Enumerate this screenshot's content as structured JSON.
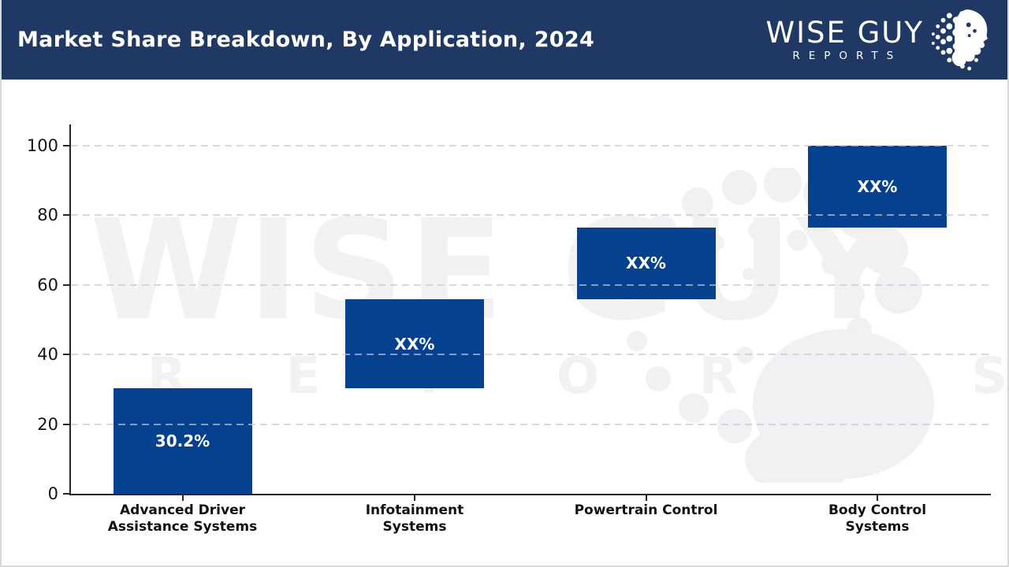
{
  "header": {
    "title": "Market Share Breakdown, By Application, 2024",
    "background_color": "#1f3864",
    "logo": {
      "name": "WISE GUY",
      "sub": "REPORTS"
    }
  },
  "watermark": {
    "brand": "WISE GUY",
    "sub": "R E P O R T S"
  },
  "chart_data": {
    "type": "bar",
    "variant": "waterfall",
    "title": "Market Share Breakdown, By Application, 2024",
    "categories": [
      "Advanced Driver\nAssistance Systems",
      "Infotainment\nSystems",
      "Powertrain Control",
      "Body Control\nSystems"
    ],
    "segments": [
      {
        "category": "Advanced Driver Assistance Systems",
        "start": 0,
        "end": 30.2,
        "label": "30.2%"
      },
      {
        "category": "Infotainment Systems",
        "start": 30.2,
        "end": 55.8,
        "label": "XX%"
      },
      {
        "category": "Powertrain Control",
        "start": 55.8,
        "end": 76.5,
        "label": "XX%"
      },
      {
        "category": "Body Control Systems",
        "start": 76.5,
        "end": 100,
        "label": "XX%"
      }
    ],
    "yticks": [
      0,
      20,
      40,
      60,
      80,
      100
    ],
    "ylim": [
      0,
      106
    ],
    "grid": {
      "axis": "y",
      "style": "dashed",
      "color": "#d9d9d9"
    },
    "bar_color": "#05418f",
    "value_label_color": "#ffffff",
    "axis_color": "#262626",
    "xlabel": "",
    "ylabel": ""
  }
}
